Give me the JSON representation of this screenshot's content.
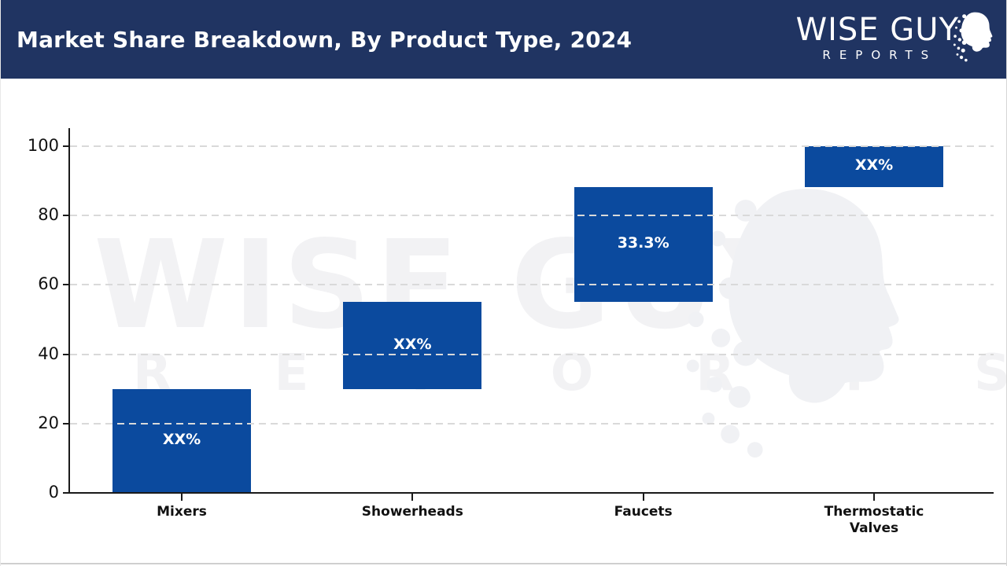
{
  "header": {
    "title": "Market Share Breakdown, By Product Type, 2024",
    "logo": {
      "line1": "WISE GUY",
      "line2": "REPORTS"
    },
    "bg_color": "#203462",
    "text_color": "#ffffff"
  },
  "watermark": {
    "line1": "WISE GUY",
    "line2": "R E P O R T S"
  },
  "chart_data": {
    "type": "bar",
    "subtype": "floating-waterfall",
    "title": "Market Share Breakdown, By Product Type, 2024",
    "categories": [
      "Mixers",
      "Showerheads",
      "Faucets",
      "Thermostatic Valves"
    ],
    "segments": [
      {
        "category": "Mixers",
        "start": 0,
        "end": 30,
        "label": "XX%"
      },
      {
        "category": "Showerheads",
        "start": 30,
        "end": 55,
        "label": "XX%"
      },
      {
        "category": "Faucets",
        "start": 55,
        "end": 88.3,
        "label": "33.3%"
      },
      {
        "category": "Thermostatic Valves",
        "start": 88.3,
        "end": 100,
        "label": "XX%"
      }
    ],
    "ylim": [
      0,
      100
    ],
    "yticks": [
      0,
      20,
      40,
      60,
      80,
      100
    ],
    "xlabel": "",
    "ylabel": "",
    "grid": "horizontal dashed, drawn over bars",
    "legend": "none",
    "bar_color": "#0b4a9e",
    "bar_label_color": "#ffffff",
    "gridline_color": "#d9d9d9",
    "axis_color": "#1a1a1a"
  }
}
